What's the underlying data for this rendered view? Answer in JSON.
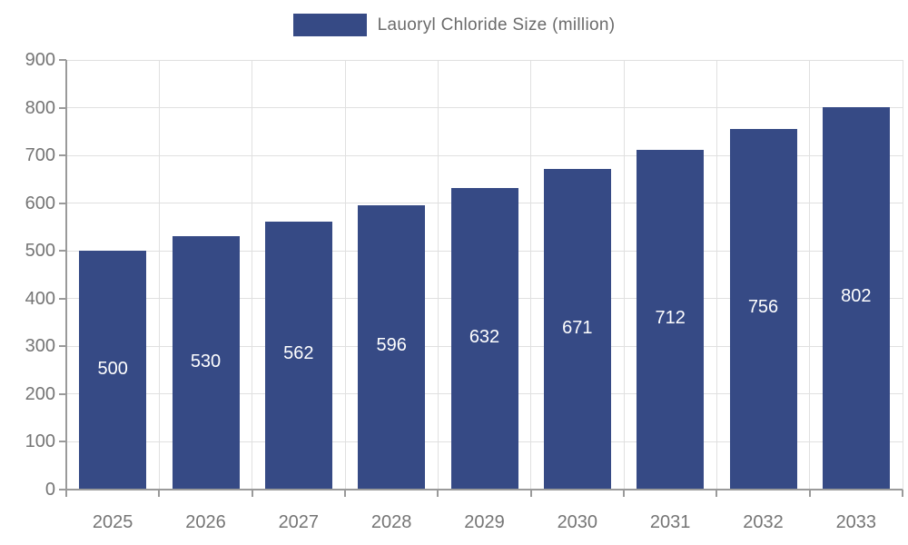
{
  "chart_data": {
    "type": "bar",
    "title": "",
    "legend_label": "Lauoryl Chloride Size (million)",
    "legend_position": "top-center",
    "categories": [
      "2025",
      "2026",
      "2027",
      "2028",
      "2029",
      "2030",
      "2031",
      "2032",
      "2033"
    ],
    "values": [
      500,
      530,
      562,
      596,
      632,
      671,
      712,
      756,
      802
    ],
    "value_labels_shown": true,
    "xlabel": "",
    "ylabel": "",
    "ylim": [
      0,
      900
    ],
    "ytick_step": 100,
    "yticks": [
      0,
      100,
      200,
      300,
      400,
      500,
      600,
      700,
      800,
      900
    ],
    "grid": true
  },
  "colors": {
    "bar": "#364a85",
    "grid": "#e0e0e0",
    "axis": "#9a9a9a",
    "tick_label": "#757575",
    "value_label": "#ffffff",
    "legend_text": "#6b6b6b",
    "background": "#ffffff"
  }
}
